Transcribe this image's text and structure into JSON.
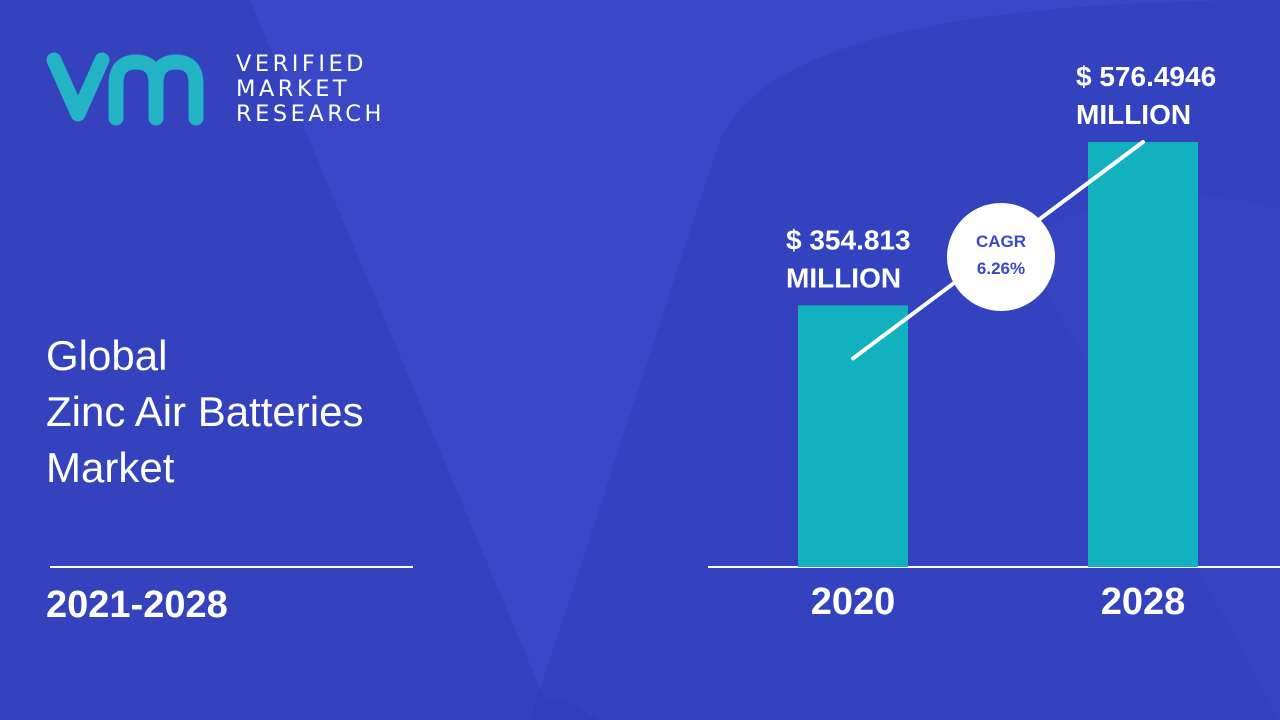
{
  "brand": {
    "line1": "VERIFIED",
    "line2": "MARKET",
    "line3": "RESEARCH",
    "logo_letters": "vmr",
    "logo_color": "#22b3c4"
  },
  "title": {
    "line1": "Global",
    "line2": "Zinc Air Batteries",
    "line3": "Market"
  },
  "period": "2021-2028",
  "colors": {
    "background": "#3a48c8",
    "background_shape": "#2c3cb4",
    "bar": "#12b1c0",
    "text": "#ffffff"
  },
  "chart_data": {
    "type": "bar",
    "categories": [
      "2020",
      "2028"
    ],
    "values": [
      354.813,
      576.4946
    ],
    "value_labels": [
      [
        "$ 354.813",
        "MILLION"
      ],
      [
        "$ 576.4946",
        "MILLION"
      ]
    ],
    "cagr": {
      "label": "CAGR",
      "value": "6.26%"
    },
    "title": "",
    "xlabel": "",
    "ylabel": "",
    "grid": false,
    "legend": "none"
  }
}
